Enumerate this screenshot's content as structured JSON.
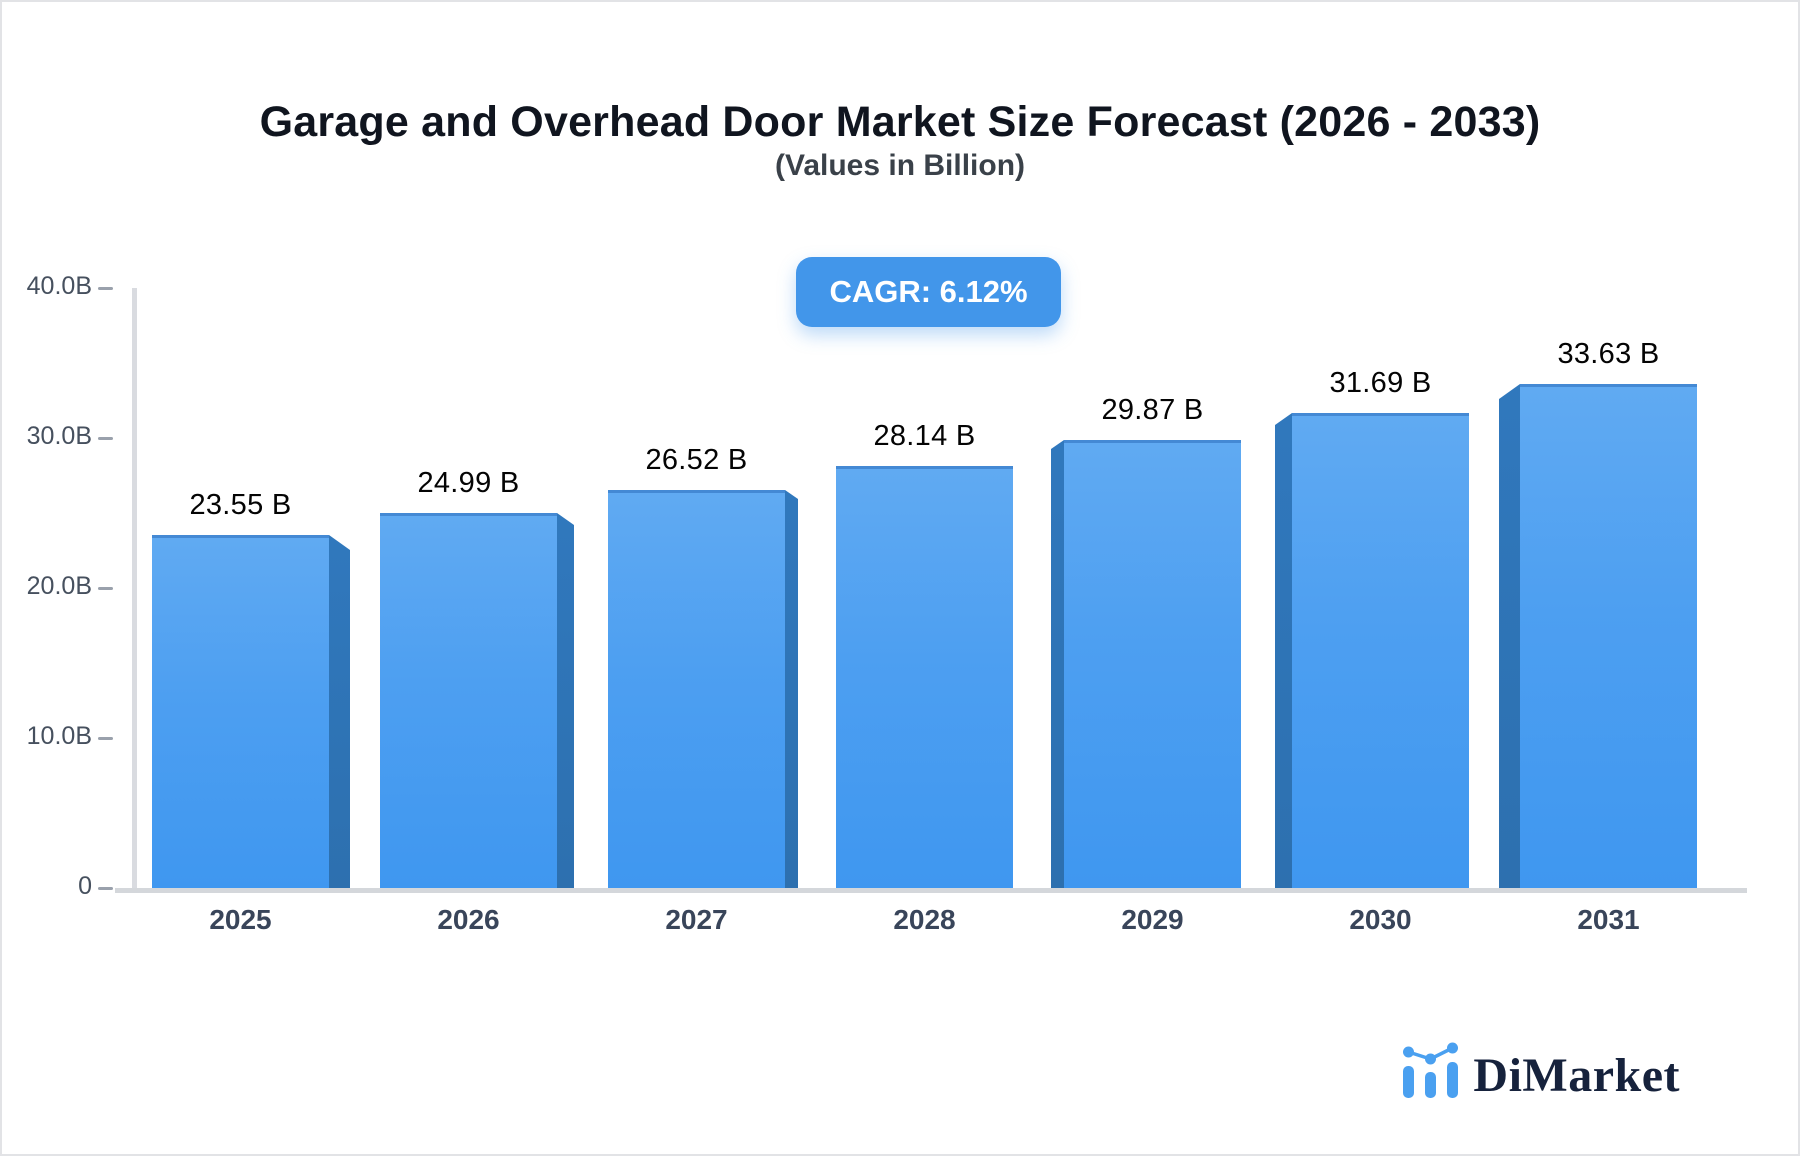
{
  "header": {
    "title": "Garage and Overhead Door Market Size Forecast (2026 - 2033)",
    "subtitle": "(Values in Billion)"
  },
  "logo": {
    "text": "DiMarket",
    "icon": "bar-line-chart-icon"
  },
  "colors": {
    "accent_blue": "#4296ea",
    "bar_face_top": "#60aaf2",
    "bar_face_bottom": "#3f97f0",
    "bar_side": "#2e74b8",
    "axis_gray": "#d9dbe0",
    "tick_text": "#46505e",
    "x_label_text": "#39455a",
    "title_text": "#10151f",
    "logo_navy": "#16223c"
  },
  "chart_data": {
    "type": "bar",
    "title": "Garage and Overhead Door Market Size Forecast (2026 - 2033)",
    "subtitle": "(Values in Billion)",
    "cagr_label": "CAGR: 6.12%",
    "categories": [
      "2025",
      "2026",
      "2027",
      "2028",
      "2029",
      "2030",
      "2031"
    ],
    "values": [
      23.55,
      24.99,
      26.52,
      28.14,
      29.87,
      31.69,
      33.63
    ],
    "value_labels": [
      "23.55 B",
      "24.99 B",
      "26.52 B",
      "28.14 B",
      "29.87 B",
      "31.69 B",
      "33.63 B"
    ],
    "xlabel": "",
    "ylabel": "",
    "ylim": [
      0,
      40
    ],
    "yticks": [
      {
        "value": 0,
        "label": "0"
      },
      {
        "value": 10,
        "label": "10.0B"
      },
      {
        "value": 20,
        "label": "20.0B"
      },
      {
        "value": 30,
        "label": "30.0B"
      },
      {
        "value": 40,
        "label": "40.0B"
      }
    ],
    "grid": false,
    "legend": null,
    "bar_style": "3d-perspective-center"
  }
}
